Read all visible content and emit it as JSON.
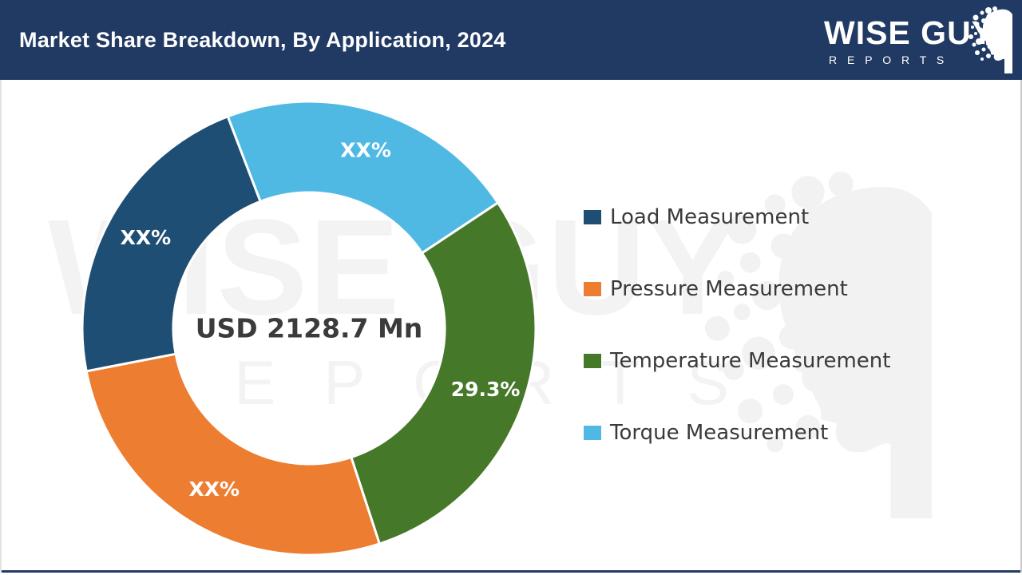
{
  "header": {
    "title": "Market Share Breakdown, By Application, 2024",
    "logo": {
      "name": "WISE GUY",
      "sub": "R E P O R T S"
    }
  },
  "watermark": {
    "line1": "WISE GUY",
    "line2": "REPORTS"
  },
  "chart_data": {
    "type": "donut",
    "title": "Market Share Breakdown, By Application, 2024",
    "center_label": "USD 2128.7 Mn",
    "start_angle_deg": 111,
    "direction": "clockwise",
    "legend_position": "right",
    "slices": [
      {
        "name": "Torque Measurement",
        "display_label": "XX%",
        "value_pct": 21.5,
        "color": "#4FB9E4"
      },
      {
        "name": "Temperature Measurement",
        "display_label": "29.3%",
        "value_pct": 29.3,
        "color": "#46782A"
      },
      {
        "name": "Pressure Measurement",
        "display_label": "XX%",
        "value_pct": 27.0,
        "color": "#ED7D31"
      },
      {
        "name": "Load Measurement",
        "display_label": "XX%",
        "value_pct": 22.2,
        "color": "#1F4E74"
      }
    ]
  },
  "legend": {
    "items": [
      {
        "label": "Load Measurement",
        "color": "#1F4E74"
      },
      {
        "label": "Pressure Measurement",
        "color": "#ED7D31"
      },
      {
        "label": "Temperature Measurement",
        "color": "#46782A"
      },
      {
        "label": "Torque Measurement",
        "color": "#4FB9E4"
      }
    ]
  },
  "colors": {
    "header_bg": "#213A64",
    "center_text": "#3B3B3B",
    "legend_text": "#3A3A3A",
    "watermark": "#F3F3F3"
  }
}
